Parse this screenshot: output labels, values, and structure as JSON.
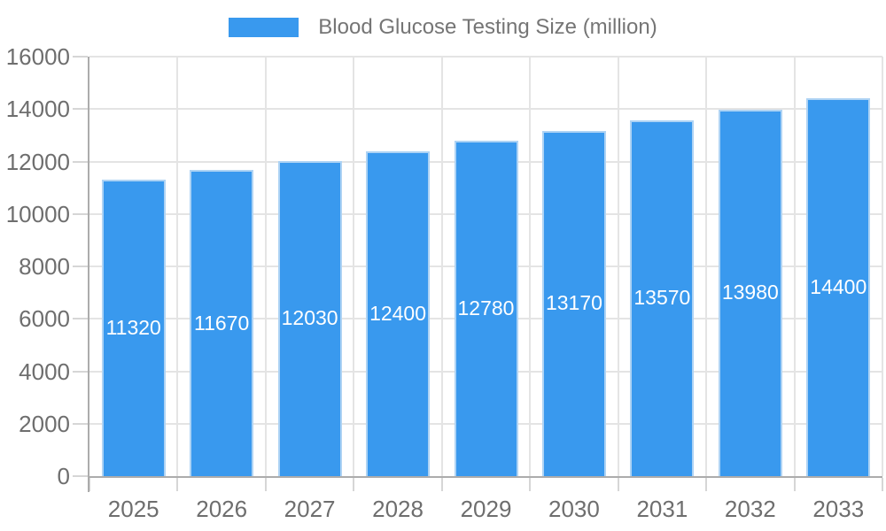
{
  "legend": {
    "label": "Blood Glucose Testing Size (million)"
  },
  "chart_data": {
    "type": "bar",
    "title": "Blood Glucose Testing Size (million)",
    "categories": [
      "2025",
      "2026",
      "2027",
      "2028",
      "2029",
      "2030",
      "2031",
      "2032",
      "2033"
    ],
    "values": [
      11320,
      11670,
      12030,
      12400,
      12780,
      13170,
      13570,
      13980,
      14400
    ],
    "series_name": "Blood Glucose Testing Size (million)",
    "xlabel": "",
    "ylabel": "",
    "ylim": [
      0,
      16000
    ],
    "ytick_step": 2000,
    "yticks": [
      0,
      2000,
      4000,
      6000,
      8000,
      10000,
      12000,
      14000,
      16000
    ],
    "grid": true,
    "legend_position": "top",
    "value_labels": "inside-center"
  },
  "colors": {
    "bar_fill": "#3999EE",
    "bar_border": "#AED3F4",
    "grid": "#E4E4E4",
    "axis": "#ACACAC",
    "tick": "#D6D6D6",
    "axis_label": "#6E6E6E",
    "legend_text": "#757575",
    "value_label": "#FFFFFF",
    "background": "#FFFFFF"
  }
}
